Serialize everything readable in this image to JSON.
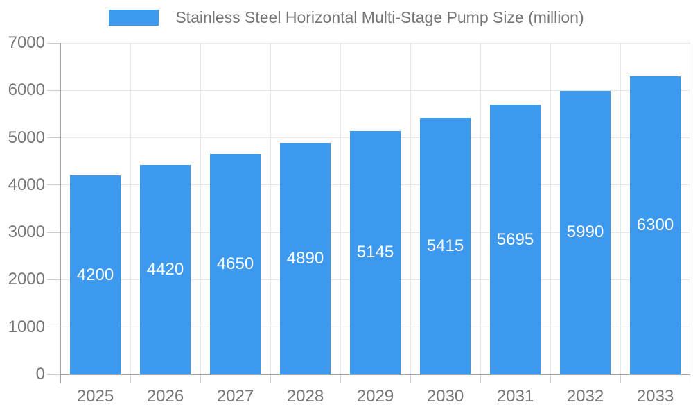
{
  "legend": {
    "series_label": "Stainless Steel Horizontal Multi-Stage Pump Size (million)"
  },
  "chart_data": {
    "type": "bar",
    "title": "",
    "categories": [
      "2025",
      "2026",
      "2027",
      "2028",
      "2029",
      "2030",
      "2031",
      "2032",
      "2033"
    ],
    "series": [
      {
        "name": "Stainless Steel Horizontal Multi-Stage Pump Size (million)",
        "values": [
          4200,
          4420,
          4650,
          4890,
          5145,
          5415,
          5695,
          5990,
          6300
        ]
      }
    ],
    "value_labels": [
      "4200",
      "4420",
      "4650",
      "4890",
      "5145",
      "5415",
      "5695",
      "5990",
      "6300"
    ],
    "xlabel": "",
    "ylabel": "",
    "ylim": [
      0,
      7000
    ],
    "y_tick_step": 1000,
    "y_tick_labels": [
      "0",
      "1000",
      "2000",
      "3000",
      "4000",
      "5000",
      "6000",
      "7000"
    ],
    "grid": true,
    "legend_position": "top",
    "colors": {
      "bar": "#3C99EE",
      "gridline": "#e6e6e6",
      "axis_line": "#a6a6a6",
      "tick": "#cccccc",
      "axis_text": "#757575",
      "value_label_text": "#ffffff"
    }
  }
}
